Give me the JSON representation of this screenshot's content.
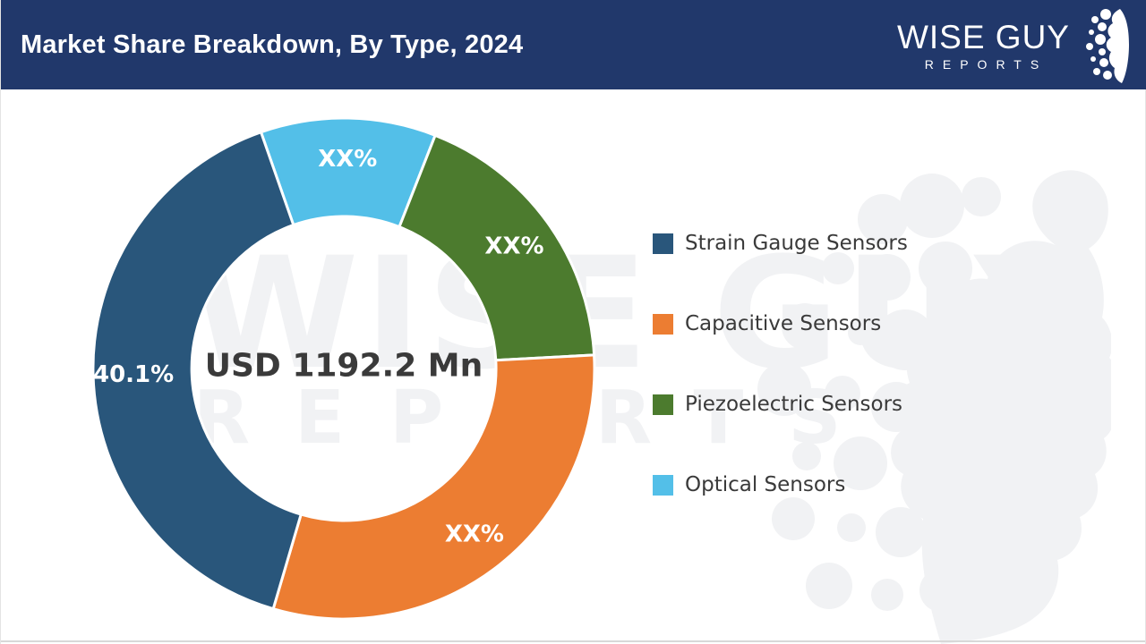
{
  "header": {
    "title": "Market Share Breakdown, By Type, 2024",
    "bg_color": "#21386B",
    "logo": {
      "line1": "WISE GUY",
      "line2": "REPORTS"
    }
  },
  "watermark": {
    "line1": "WISE GUY",
    "line2": "REPORTS"
  },
  "chart_data": {
    "type": "pie",
    "subtype": "donut",
    "title": "Market Share Breakdown, By Type, 2024",
    "center_text": "USD 1192.2 Mn",
    "start_angle_deg": -19.3,
    "direction": "clockwise",
    "slices": [
      {
        "label": "Optical Sensors",
        "value_pct": 11.3,
        "display_label": "XX%",
        "color": "#53BFE8"
      },
      {
        "label": "Piezoelectric Sensors",
        "value_pct": 18.2,
        "display_label": "XX%",
        "color": "#4C7B2E"
      },
      {
        "label": "Capacitive Sensors",
        "value_pct": 30.4,
        "display_label": "XX%",
        "color": "#EC7D32"
      },
      {
        "label": "Strain Gauge Sensors",
        "value_pct": 40.1,
        "display_label": "40.1%",
        "color": "#29567B"
      }
    ],
    "legend_position": "right"
  },
  "legend": {
    "items": [
      {
        "label": "Strain Gauge Sensors",
        "color": "#29567B"
      },
      {
        "label": "Capacitive Sensors",
        "color": "#EC7D32"
      },
      {
        "label": "Piezoelectric Sensors",
        "color": "#4C7B2E"
      },
      {
        "label": "Optical Sensors",
        "color": "#53BFE8"
      }
    ]
  }
}
